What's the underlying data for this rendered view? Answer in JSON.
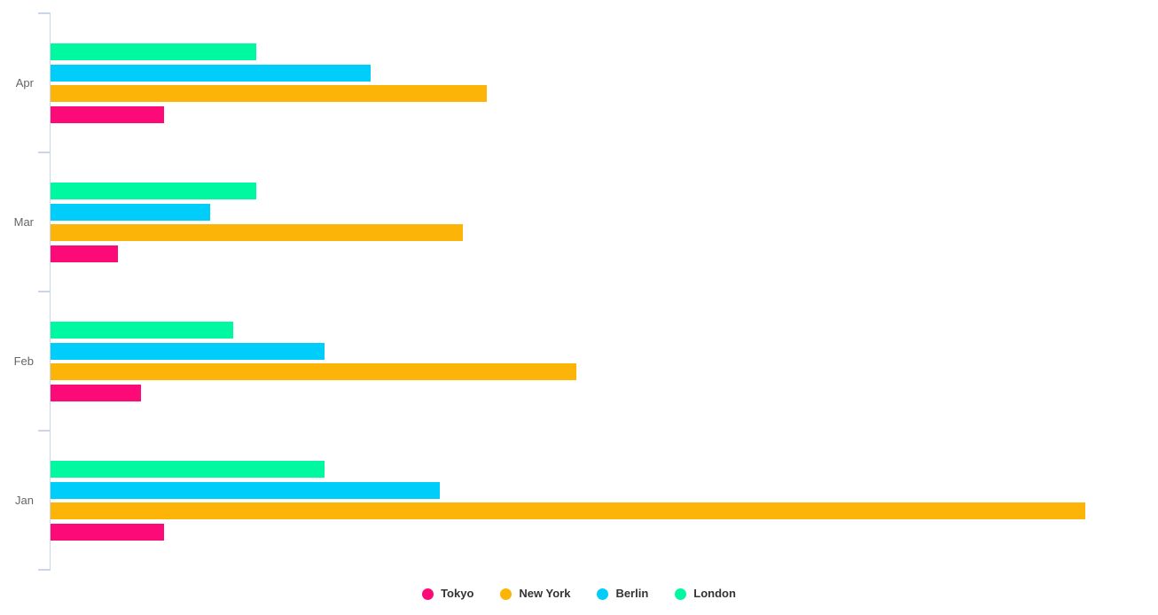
{
  "chart_data": {
    "type": "bar",
    "orientation": "horizontal",
    "title": "",
    "xlabel": "",
    "ylabel": "",
    "categories": [
      "Jan",
      "Feb",
      "Mar",
      "Apr"
    ],
    "categories_display_top_to_bottom": [
      "Apr",
      "Mar",
      "Feb",
      "Jan"
    ],
    "series": [
      {
        "name": "Tokyo",
        "color": "#fb0a78",
        "values": [
          10.3,
          8.2,
          6.1,
          10.3
        ]
      },
      {
        "name": "New York",
        "color": "#fdb408",
        "values": [
          94.2,
          47.9,
          37.5,
          39.7
        ]
      },
      {
        "name": "Berlin",
        "color": "#00cdf9",
        "values": [
          35.4,
          24.9,
          14.5,
          29.1
        ]
      },
      {
        "name": "London",
        "color": "#00f9a0",
        "values": [
          24.9,
          16.6,
          18.7,
          18.7
        ]
      }
    ],
    "xlim": [
      0,
      100
    ],
    "grid": false,
    "x_axis_tick_labels_visible": false,
    "legend_position": "bottom-center",
    "legend_order": [
      "Tokyo",
      "New York",
      "Berlin",
      "London"
    ],
    "series_order_within_group_top_to_bottom": [
      "London",
      "Berlin",
      "New York",
      "Tokyo"
    ],
    "colors": {
      "axis_line": "#ccd6eb",
      "category_label": "#666666",
      "legend_text": "#333333",
      "background": "#ffffff"
    }
  }
}
